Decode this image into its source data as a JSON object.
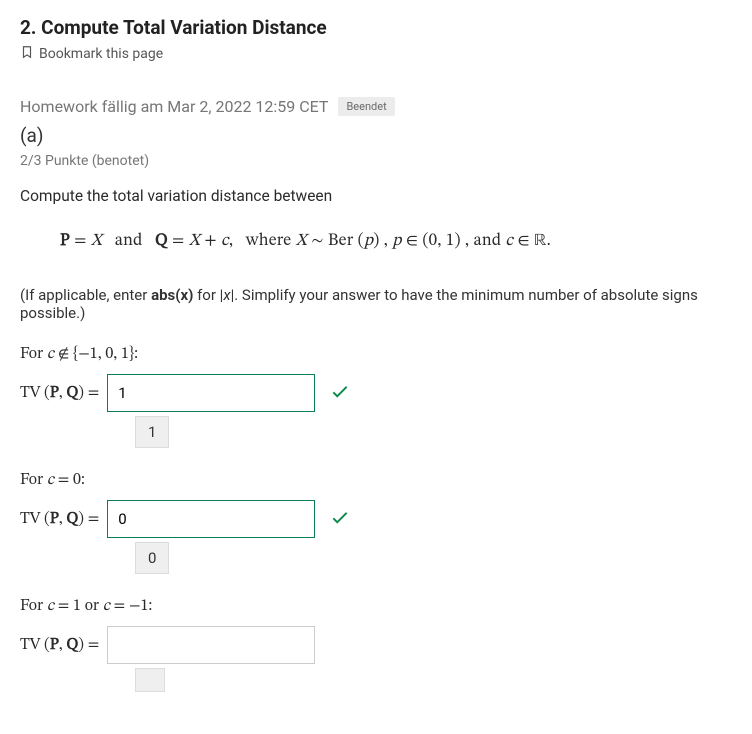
{
  "title": "2. Compute Total Variation Distance",
  "bookmark_label": "Bookmark this page",
  "due_text": "Homework fällig am Mar 2, 2022 12:59 CET",
  "status_badge": "Beendet",
  "part_label": "(a)",
  "points_text": "2/3 Punkte (benotet)",
  "prompt_text": "Compute the total variation distance between",
  "math_line_html": "<span class='bold'>P</span> = <span class='it'>X</span>&nbsp;&nbsp;&nbsp;and&nbsp;&nbsp;&nbsp;<span class='bold'>Q</span> = <span class='it'>X</span> + <span class='it'>c</span>,&nbsp;&nbsp;&nbsp;where <span class='it'>X</span> ∼ Ber (<span class='it'>p</span>) , <span class='it'>p</span> ∈ (0, 1) , and <span class='it'>c</span> ∈ <span class='dbl'>ℝ</span>.",
  "note_html": "(If applicable, enter <b>abs(x)</b> for |<i>x</i>|. Simplify your answer to have the minimum number of absolute signs possible.)",
  "tv_label_html": "TV (<b>P</b>, <b>Q</b>) =",
  "colors": {
    "correct_border": "#0a7d55",
    "check": "#0a8a4a",
    "badge_bg": "#ececec",
    "muted": "#767676"
  },
  "cases": [
    {
      "condition_html": "For <i>c</i> ∉ {−1, 0, 1}:",
      "input_value": "1",
      "correct": true,
      "solution_display": "1"
    },
    {
      "condition_html": "For <i>c</i> = 0:",
      "input_value": "0",
      "correct": true,
      "solution_display": "0"
    },
    {
      "condition_html": "For <i>c</i> = 1 or <i>c</i> = −1:",
      "input_value": "",
      "correct": false,
      "solution_display": ""
    }
  ]
}
